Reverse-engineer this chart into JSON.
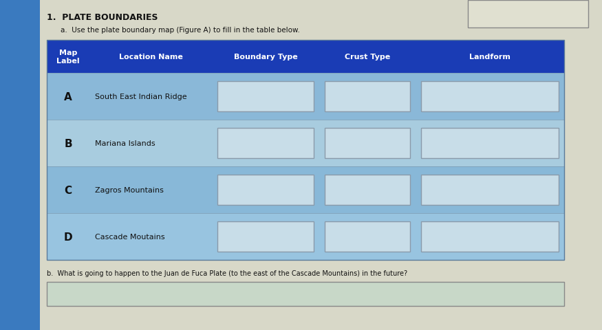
{
  "title": "1.  PLATE BOUNDARIES",
  "subtitle_a": "a.  Use the plate boundary map (Figure A) to fill in the table below.",
  "subtitle_b": "b.  What is going to happen to the Juan de Fuca Plate (to the east of the Cascade Mountains) in the future?",
  "header_labels": [
    "Map\nLabel",
    "Location Name",
    "Boundary Type",
    "Crust Type",
    "Landform"
  ],
  "rows": [
    {
      "label": "A",
      "name": "South East Indian Ridge"
    },
    {
      "label": "B",
      "name": "Mariana Islands"
    },
    {
      "label": "C",
      "name": "Zagros Mountains"
    },
    {
      "label": "D",
      "name": "Cascade Moutains"
    }
  ],
  "page_bg": "#d8d8c8",
  "left_sidebar_color": "#3a7abf",
  "header_bg": "#1a3cb5",
  "header_text_color": "#ffffff",
  "row_a_bg": "#8ab8d8",
  "row_b_bg": "#a8ccdf",
  "row_c_bg": "#88b8d8",
  "row_d_bg": "#98c4e0",
  "input_box_fill": "#c8dde8",
  "input_box_border": "#8a9aaa",
  "text_color": "#111111",
  "top_right_box_fill": "#e0e0d0",
  "top_right_box_border": "#888888",
  "ans_box_fill": "#c8d8c8",
  "ans_box_border": "#888888"
}
